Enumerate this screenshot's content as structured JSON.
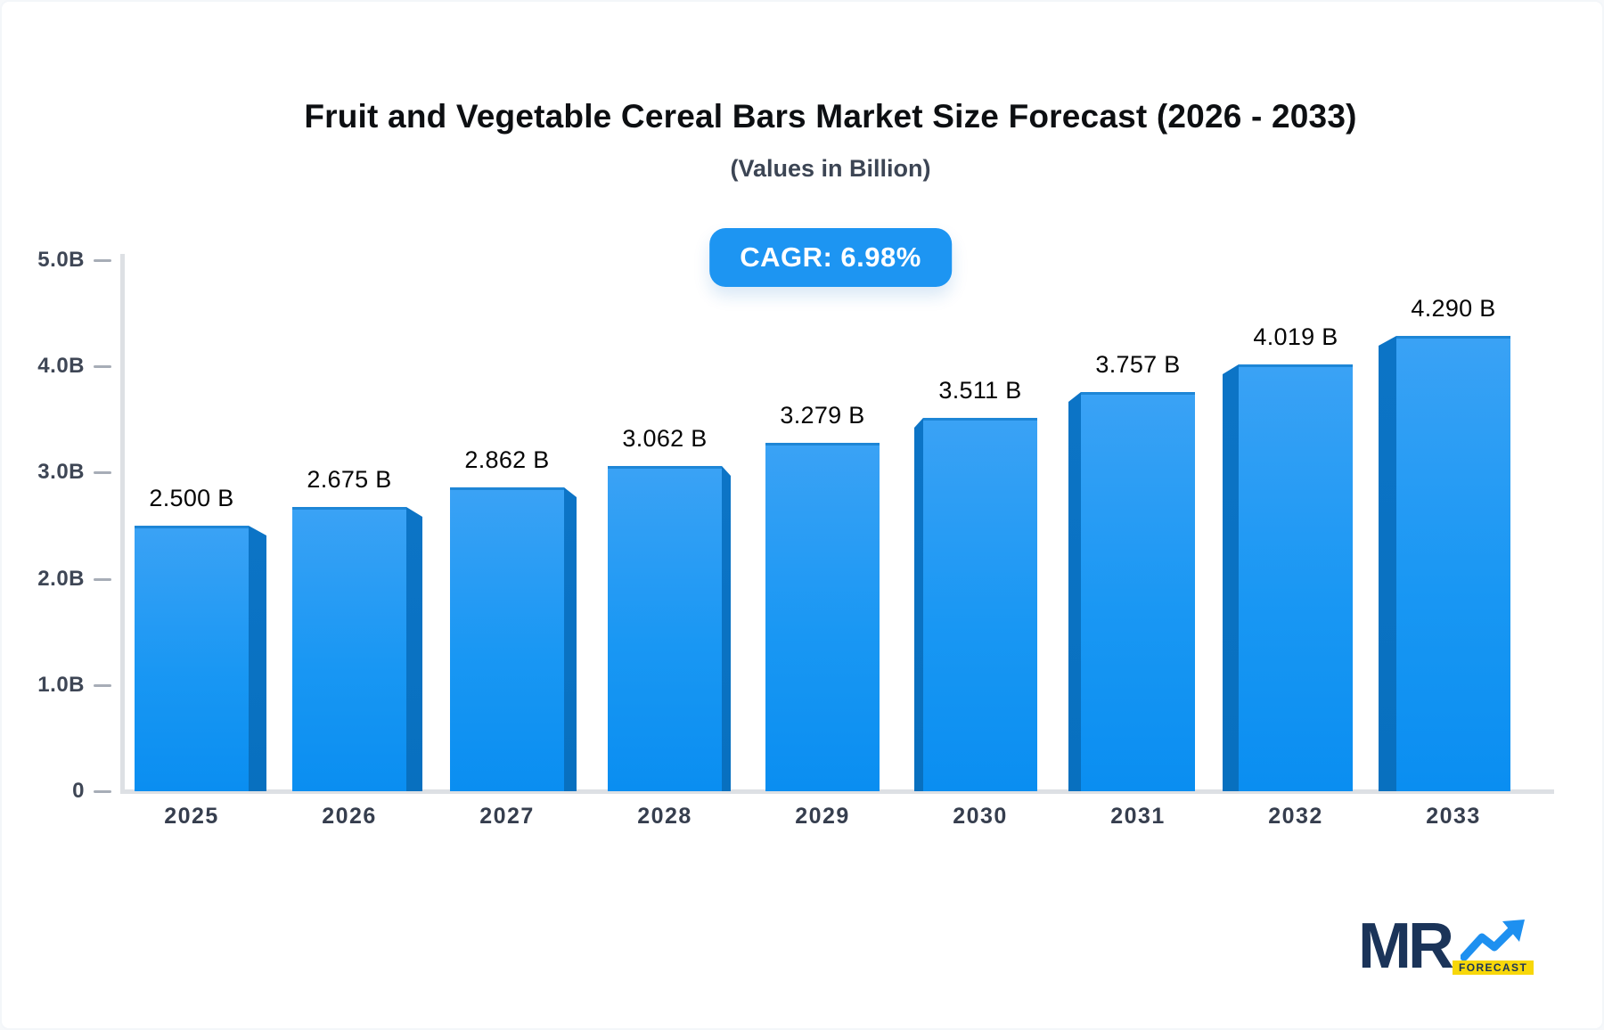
{
  "title": "Fruit and Vegetable Cereal Bars Market Size Forecast (2026 - 2033)",
  "subtitle": "(Values in Billion)",
  "cagr_badge": "CAGR: 6.98%",
  "logo": {
    "text": "MR",
    "sub": "FORECAST"
  },
  "colors": {
    "accent": "#1d95f2",
    "bar_top": "#3aa2f5",
    "bar_bottom": "#0a8ef1",
    "bar_side": "#0b72c4",
    "bar_top_edge": "#1e86d6",
    "axis": "#dde0e4",
    "tick": "#a7adb7",
    "text_dark": "#0d0f12",
    "text_slate": "#3c4554",
    "logo_navy": "#1b3459",
    "logo_blue": "#1e90f0",
    "logo_yellow": "#f7d70a"
  },
  "chart_data": {
    "type": "bar",
    "title": "Fruit and Vegetable Cereal Bars Market Size Forecast (2026 - 2033)",
    "subtitle": "(Values in Billion)",
    "categories": [
      "2025",
      "2026",
      "2027",
      "2028",
      "2029",
      "2030",
      "2031",
      "2032",
      "2033"
    ],
    "values": [
      2.5,
      2.675,
      2.862,
      3.062,
      3.279,
      3.511,
      3.757,
      4.019,
      4.29
    ],
    "value_labels": [
      "2.500 B",
      "2.675 B",
      "2.862 B",
      "3.062 B",
      "3.279 B",
      "3.511 B",
      "3.757 B",
      "4.019 B",
      "4.290 B"
    ],
    "xlabel": "",
    "ylabel": "",
    "ylim": [
      0,
      5
    ],
    "ytick_labels": [
      "0",
      "1.0B",
      "2.0B",
      "3.0B",
      "4.0B",
      "5.0B"
    ],
    "ytick_values": [
      0,
      1,
      2,
      3,
      4,
      5
    ],
    "grid": false,
    "legend": false,
    "annotation": "CAGR: 6.98%"
  }
}
